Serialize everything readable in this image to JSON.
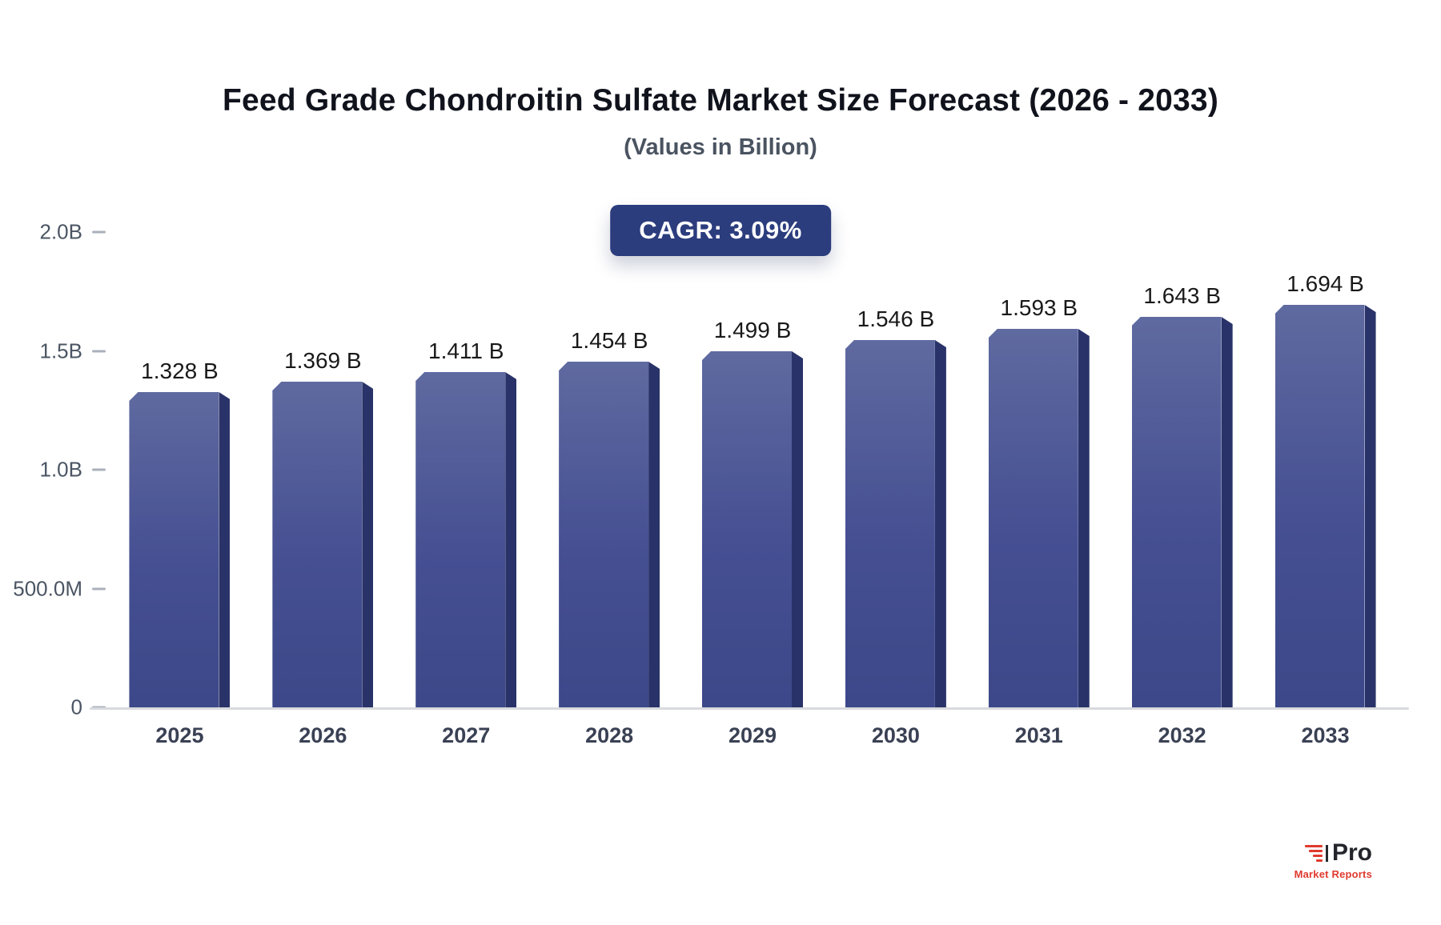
{
  "title": "Feed Grade Chondroitin Sulfate Market Size Forecast (2026 - 2033)",
  "subtitle": "(Values in Billion)",
  "cagr": "CAGR: 3.09%",
  "logo": {
    "name": "Pro",
    "tagline": "Market Reports"
  },
  "colors": {
    "bar_top": "#5f6aa0",
    "bar_bottom": "#3c4889",
    "bar_side": "#293369",
    "badge_bg": "#2c3d7e",
    "axis_text": "#4b5563",
    "value_text": "#191919"
  },
  "chart_data": {
    "type": "bar",
    "title": "Feed Grade Chondroitin Sulfate Market Size Forecast (2026 - 2033)",
    "subtitle": "(Values in Billion)",
    "categories": [
      "2025",
      "2026",
      "2027",
      "2028",
      "2029",
      "2030",
      "2031",
      "2032",
      "2033"
    ],
    "values": [
      1.328,
      1.369,
      1.411,
      1.454,
      1.499,
      1.546,
      1.593,
      1.643,
      1.694
    ],
    "value_labels": [
      "1.328 B",
      "1.369 B",
      "1.411 B",
      "1.454 B",
      "1.499 B",
      "1.546 B",
      "1.593 B",
      "1.643 B",
      "1.694 B"
    ],
    "xlabel": "",
    "ylabel": "",
    "ylim": [
      0,
      2.0
    ],
    "yticks": [
      {
        "value": 2.0,
        "label": "2.0B"
      },
      {
        "value": 1.5,
        "label": "1.5B"
      },
      {
        "value": 1.0,
        "label": "1.0B"
      },
      {
        "value": 0.5,
        "label": "500.0M"
      },
      {
        "value": 0.0,
        "label": "0"
      }
    ],
    "grid": false,
    "legend": false,
    "annotation": "CAGR: 3.09%"
  }
}
